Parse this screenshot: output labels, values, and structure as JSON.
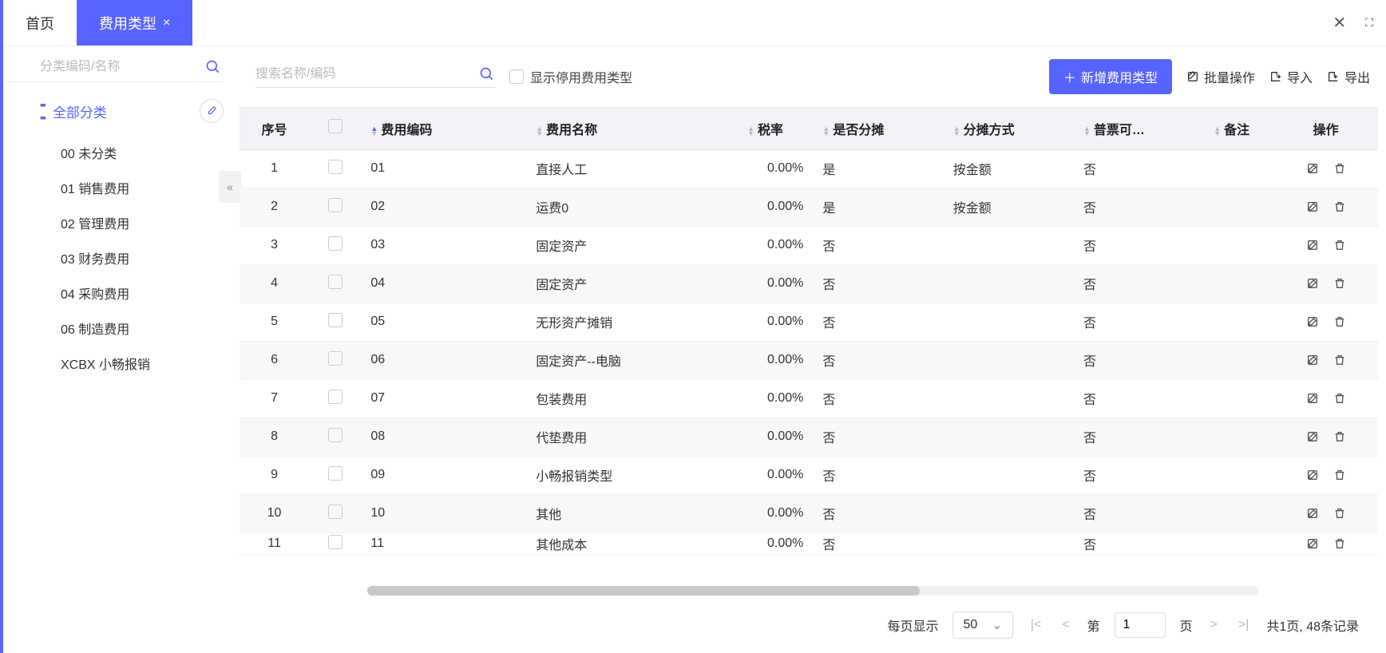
{
  "colors": {
    "primary": "#5864ff",
    "header_bg": "#f2f3f7",
    "row_alt": "#f7f8fa"
  },
  "tabs": {
    "home": "首页",
    "active": "费用类型"
  },
  "sidebar": {
    "search_placeholder": "分类编码/名称",
    "title": "全部分类",
    "items": [
      {
        "label": "00 未分类"
      },
      {
        "label": "01 销售费用"
      },
      {
        "label": "02 管理费用"
      },
      {
        "label": "03 财务费用"
      },
      {
        "label": "04 采购费用"
      },
      {
        "label": "06 制造费用"
      },
      {
        "label": "XCBX 小畅报销"
      }
    ]
  },
  "toolbar": {
    "search_placeholder": "搜索名称/编码",
    "show_disabled": "显示停用费用类型",
    "add_label": "新增费用类型",
    "batch_label": "批量操作",
    "import_label": "导入",
    "export_label": "导出"
  },
  "table": {
    "columns": {
      "seq": "序号",
      "code": "费用编码",
      "name": "费用名称",
      "rate": "税率",
      "share": "是否分摊",
      "method": "分摊方式",
      "pp": "普票可…",
      "note": "备注",
      "op": "操作"
    },
    "rows": [
      {
        "seq": "1",
        "code": "01",
        "name": "直接人工",
        "rate": "0.00%",
        "share": "是",
        "method": "按金额",
        "pp": "否"
      },
      {
        "seq": "2",
        "code": "02",
        "name": "运费0",
        "rate": "0.00%",
        "share": "是",
        "method": "按金额",
        "pp": "否"
      },
      {
        "seq": "3",
        "code": "03",
        "name": "固定资产",
        "rate": "0.00%",
        "share": "否",
        "method": "",
        "pp": "否"
      },
      {
        "seq": "4",
        "code": "04",
        "name": "固定资产",
        "rate": "0.00%",
        "share": "否",
        "method": "",
        "pp": "否"
      },
      {
        "seq": "5",
        "code": "05",
        "name": "无形资产摊销",
        "rate": "0.00%",
        "share": "否",
        "method": "",
        "pp": "否"
      },
      {
        "seq": "6",
        "code": "06",
        "name": "固定资产--电脑",
        "rate": "0.00%",
        "share": "否",
        "method": "",
        "pp": "否"
      },
      {
        "seq": "7",
        "code": "07",
        "name": "包装费用",
        "rate": "0.00%",
        "share": "否",
        "method": "",
        "pp": "否"
      },
      {
        "seq": "8",
        "code": "08",
        "name": "代垫费用",
        "rate": "0.00%",
        "share": "否",
        "method": "",
        "pp": "否"
      },
      {
        "seq": "9",
        "code": "09",
        "name": "小畅报销类型",
        "rate": "0.00%",
        "share": "否",
        "method": "",
        "pp": "否"
      },
      {
        "seq": "10",
        "code": "10",
        "name": "其他",
        "rate": "0.00%",
        "share": "否",
        "method": "",
        "pp": "否"
      },
      {
        "seq": "11",
        "code": "11",
        "name": "其他成本",
        "rate": "0.00%",
        "share": "否",
        "method": "",
        "pp": "否"
      }
    ]
  },
  "pager": {
    "per_page_label": "每页显示",
    "per_page_value": "50",
    "page_prefix": "第",
    "page_value": "1",
    "page_suffix": "页",
    "summary": "共1页, 48条记录"
  }
}
